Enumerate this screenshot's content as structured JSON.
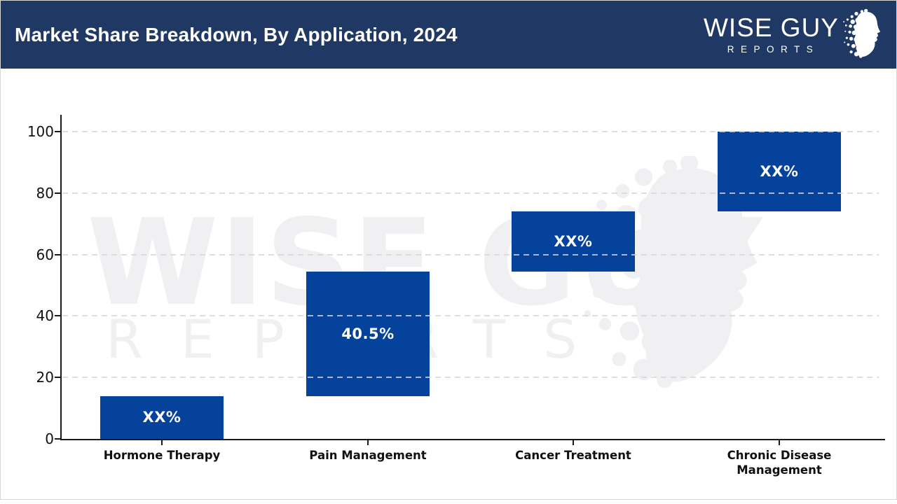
{
  "header": {
    "title": "Market Share Breakdown, By Application, 2024",
    "logo": {
      "name": "WISE GUY",
      "tagline": "REPORTS"
    }
  },
  "watermark": {
    "name": "WISE GUY",
    "tagline": "REPORTS"
  },
  "colors": {
    "header_bg": "#203864",
    "bar_fill": "#05429b",
    "grid": "#d6d6d6",
    "axis": "#1a1a1a",
    "watermark": "#f0f0f2",
    "bar_label_text": "#ffffff",
    "tick_label_text": "#111111"
  },
  "chart_data": {
    "type": "bar",
    "subtype": "floating-segment-bars",
    "title": "Market Share Breakdown, By Application, 2024",
    "categories": [
      "Hormone Therapy",
      "Pain Management",
      "Cancer Treatment",
      "Chronic Disease Management"
    ],
    "bars": [
      {
        "category": "Hormone Therapy",
        "start": 0,
        "end": 14,
        "label": "XX%"
      },
      {
        "category": "Pain Management",
        "start": 14,
        "end": 54.5,
        "label": "40.5%",
        "value": 40.5
      },
      {
        "category": "Cancer Treatment",
        "start": 54.5,
        "end": 74,
        "label": "XX%"
      },
      {
        "category": "Chronic Disease Management",
        "start": 74,
        "end": 100,
        "label": "XX%"
      }
    ],
    "yticks": [
      0,
      20,
      40,
      60,
      80,
      100
    ],
    "ylim": [
      0,
      105
    ],
    "xlabel": "",
    "ylabel": "",
    "grid": "dashed horizontal gridlines",
    "legend": "none"
  }
}
